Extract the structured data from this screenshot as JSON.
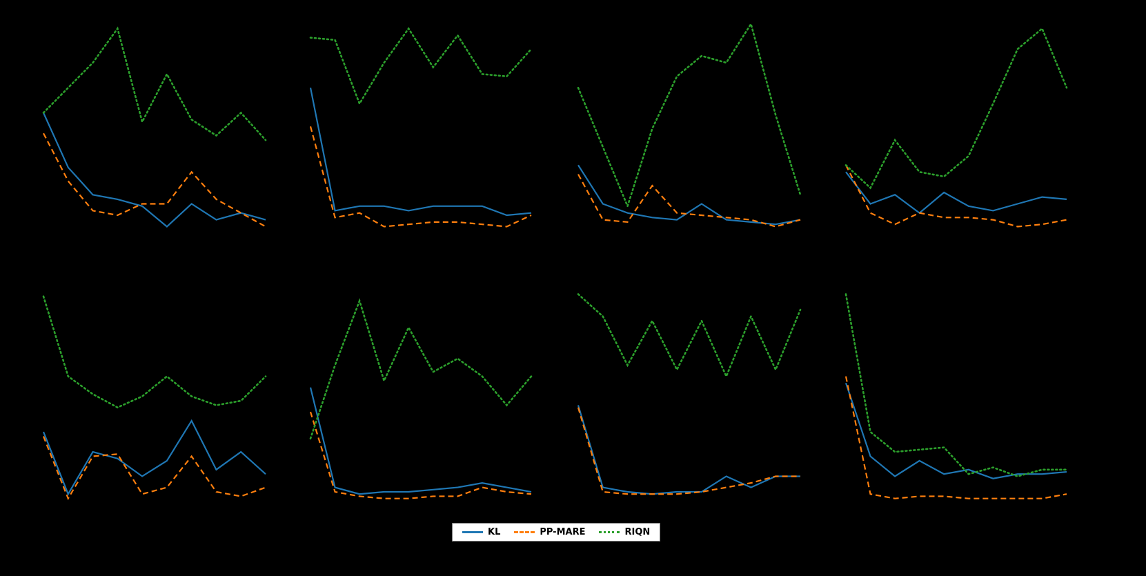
{
  "figure": {
    "background_color": "#000000",
    "note": "2x4 grid of line subplots; axis ticks, labels and titles are rendered black on black and are not visible",
    "legend": {
      "position": "bottom-center",
      "background": "#ffffff",
      "border_color": "#7f7f7f",
      "items": [
        {
          "label": "KL",
          "color": "#1f77b4",
          "style": "solid"
        },
        {
          "label": "PP-MARE",
          "color": "#ff7f0e",
          "style": "dashed"
        },
        {
          "label": "RIQN",
          "color": "#2ca02c",
          "style": "dotted"
        }
      ]
    }
  },
  "chart_data": [
    {
      "type": "line",
      "position": "row 1, col 1",
      "x": [
        1,
        2,
        3,
        4,
        5,
        6,
        7,
        8,
        9,
        10
      ],
      "ylim": [
        0,
        1
      ],
      "value_scale": "normalized estimate (no visible axis labels)",
      "grid": false,
      "series": [
        {
          "name": "KL",
          "color": "#1f77b4",
          "style": "solid",
          "values": [
            0.55,
            0.31,
            0.19,
            0.17,
            0.14,
            0.05,
            0.15,
            0.08,
            0.11,
            0.08
          ]
        },
        {
          "name": "PP-MARE",
          "color": "#ff7f0e",
          "style": "dashed",
          "values": [
            0.46,
            0.25,
            0.12,
            0.1,
            0.15,
            0.15,
            0.29,
            0.17,
            0.11,
            0.05
          ]
        },
        {
          "name": "RIQN",
          "color": "#2ca02c",
          "style": "dotted",
          "values": [
            0.55,
            0.66,
            0.77,
            0.92,
            0.51,
            0.72,
            0.52,
            0.45,
            0.55,
            0.43
          ]
        }
      ]
    },
    {
      "type": "line",
      "position": "row 1, col 2",
      "x": [
        1,
        2,
        3,
        4,
        5,
        6,
        7,
        8,
        9,
        10
      ],
      "ylim": [
        0,
        1
      ],
      "value_scale": "normalized estimate (no visible axis labels)",
      "grid": false,
      "series": [
        {
          "name": "KL",
          "color": "#1f77b4",
          "style": "solid",
          "values": [
            0.66,
            0.12,
            0.14,
            0.14,
            0.12,
            0.14,
            0.14,
            0.14,
            0.1,
            0.11
          ]
        },
        {
          "name": "PP-MARE",
          "color": "#ff7f0e",
          "style": "dashed",
          "values": [
            0.49,
            0.09,
            0.11,
            0.05,
            0.06,
            0.07,
            0.07,
            0.06,
            0.05,
            0.1
          ]
        },
        {
          "name": "RIQN",
          "color": "#2ca02c",
          "style": "dotted",
          "values": [
            0.88,
            0.87,
            0.59,
            0.77,
            0.92,
            0.75,
            0.89,
            0.72,
            0.71,
            0.83
          ]
        }
      ]
    },
    {
      "type": "line",
      "position": "row 1, col 3",
      "x": [
        1,
        2,
        3,
        4,
        5,
        6,
        7,
        8,
        9,
        10
      ],
      "ylim": [
        0,
        1
      ],
      "value_scale": "normalized estimate (no visible axis labels)",
      "grid": false,
      "series": [
        {
          "name": "KL",
          "color": "#1f77b4",
          "style": "solid",
          "values": [
            0.32,
            0.15,
            0.11,
            0.09,
            0.08,
            0.15,
            0.08,
            0.07,
            0.06,
            0.08
          ]
        },
        {
          "name": "PP-MARE",
          "color": "#ff7f0e",
          "style": "dashed",
          "values": [
            0.28,
            0.08,
            0.07,
            0.23,
            0.11,
            0.1,
            0.09,
            0.08,
            0.05,
            0.08
          ]
        },
        {
          "name": "RIQN",
          "color": "#2ca02c",
          "style": "dotted",
          "values": [
            0.66,
            0.4,
            0.14,
            0.48,
            0.71,
            0.8,
            0.77,
            0.94,
            0.54,
            0.19
          ]
        }
      ]
    },
    {
      "type": "line",
      "position": "row 1, col 4",
      "x": [
        1,
        2,
        3,
        4,
        5,
        6,
        7,
        8,
        9,
        10
      ],
      "ylim": [
        0,
        1
      ],
      "value_scale": "normalized estimate (no visible axis labels)",
      "grid": false,
      "series": [
        {
          "name": "KL",
          "color": "#1f77b4",
          "style": "solid",
          "values": [
            0.29,
            0.15,
            0.19,
            0.11,
            0.2,
            0.14,
            0.12,
            0.15,
            0.18,
            0.17
          ]
        },
        {
          "name": "PP-MARE",
          "color": "#ff7f0e",
          "style": "dashed",
          "values": [
            0.32,
            0.11,
            0.06,
            0.11,
            0.09,
            0.09,
            0.08,
            0.05,
            0.06,
            0.08
          ]
        },
        {
          "name": "RIQN",
          "color": "#2ca02c",
          "style": "dotted",
          "values": [
            0.32,
            0.22,
            0.43,
            0.29,
            0.27,
            0.36,
            0.59,
            0.83,
            0.92,
            0.66
          ]
        }
      ]
    },
    {
      "type": "line",
      "position": "row 2, col 1",
      "x": [
        1,
        2,
        3,
        4,
        5,
        6,
        7,
        8,
        9,
        10
      ],
      "ylim": [
        0,
        1
      ],
      "value_scale": "normalized estimate (no visible axis labels)",
      "grid": false,
      "series": [
        {
          "name": "KL",
          "color": "#1f77b4",
          "style": "solid",
          "values": [
            0.36,
            0.08,
            0.27,
            0.24,
            0.16,
            0.23,
            0.41,
            0.19,
            0.27,
            0.17
          ]
        },
        {
          "name": "PP-MARE",
          "color": "#ff7f0e",
          "style": "dashed",
          "values": [
            0.34,
            0.06,
            0.25,
            0.26,
            0.08,
            0.11,
            0.25,
            0.09,
            0.07,
            0.11
          ]
        },
        {
          "name": "RIQN",
          "color": "#2ca02c",
          "style": "dotted",
          "values": [
            0.97,
            0.61,
            0.53,
            0.47,
            0.52,
            0.61,
            0.52,
            0.48,
            0.5,
            0.61
          ]
        }
      ]
    },
    {
      "type": "line",
      "position": "row 2, col 2",
      "x": [
        1,
        2,
        3,
        4,
        5,
        6,
        7,
        8,
        9,
        10
      ],
      "ylim": [
        0,
        1
      ],
      "value_scale": "normalized estimate (no visible axis labels)",
      "grid": false,
      "series": [
        {
          "name": "KL",
          "color": "#1f77b4",
          "style": "solid",
          "values": [
            0.56,
            0.11,
            0.08,
            0.09,
            0.09,
            0.1,
            0.11,
            0.13,
            0.11,
            0.09
          ]
        },
        {
          "name": "PP-MARE",
          "color": "#ff7f0e",
          "style": "dashed",
          "values": [
            0.45,
            0.09,
            0.07,
            0.06,
            0.06,
            0.07,
            0.07,
            0.11,
            0.09,
            0.08
          ]
        },
        {
          "name": "RIQN",
          "color": "#2ca02c",
          "style": "dotted",
          "values": [
            0.33,
            0.66,
            0.95,
            0.59,
            0.83,
            0.63,
            0.69,
            0.61,
            0.48,
            0.61
          ]
        }
      ]
    },
    {
      "type": "line",
      "position": "row 2, col 3",
      "x": [
        1,
        2,
        3,
        4,
        5,
        6,
        7,
        8,
        9,
        10
      ],
      "ylim": [
        0,
        1
      ],
      "value_scale": "normalized estimate (no visible axis labels)",
      "grid": false,
      "series": [
        {
          "name": "KL",
          "color": "#1f77b4",
          "style": "solid",
          "values": [
            0.48,
            0.11,
            0.09,
            0.08,
            0.09,
            0.09,
            0.16,
            0.11,
            0.16,
            0.16
          ]
        },
        {
          "name": "PP-MARE",
          "color": "#ff7f0e",
          "style": "dashed",
          "values": [
            0.47,
            0.09,
            0.08,
            0.08,
            0.08,
            0.09,
            0.11,
            0.13,
            0.16,
            0.16
          ]
        },
        {
          "name": "RIQN",
          "color": "#2ca02c",
          "style": "dotted",
          "values": [
            0.98,
            0.88,
            0.66,
            0.86,
            0.64,
            0.86,
            0.61,
            0.88,
            0.64,
            0.91
          ]
        }
      ]
    },
    {
      "type": "line",
      "position": "row 2, col 4",
      "x": [
        1,
        2,
        3,
        4,
        5,
        6,
        7,
        8,
        9,
        10
      ],
      "ylim": [
        0,
        1
      ],
      "value_scale": "normalized estimate (no visible axis labels)",
      "grid": false,
      "series": [
        {
          "name": "KL",
          "color": "#1f77b4",
          "style": "solid",
          "values": [
            0.58,
            0.25,
            0.16,
            0.23,
            0.17,
            0.19,
            0.15,
            0.17,
            0.17,
            0.18
          ]
        },
        {
          "name": "PP-MARE",
          "color": "#ff7f0e",
          "style": "dashed",
          "values": [
            0.61,
            0.08,
            0.06,
            0.07,
            0.07,
            0.06,
            0.06,
            0.06,
            0.06,
            0.08
          ]
        },
        {
          "name": "RIQN",
          "color": "#2ca02c",
          "style": "dotted",
          "values": [
            0.98,
            0.36,
            0.27,
            0.28,
            0.29,
            0.17,
            0.2,
            0.16,
            0.19,
            0.19
          ]
        }
      ]
    }
  ]
}
